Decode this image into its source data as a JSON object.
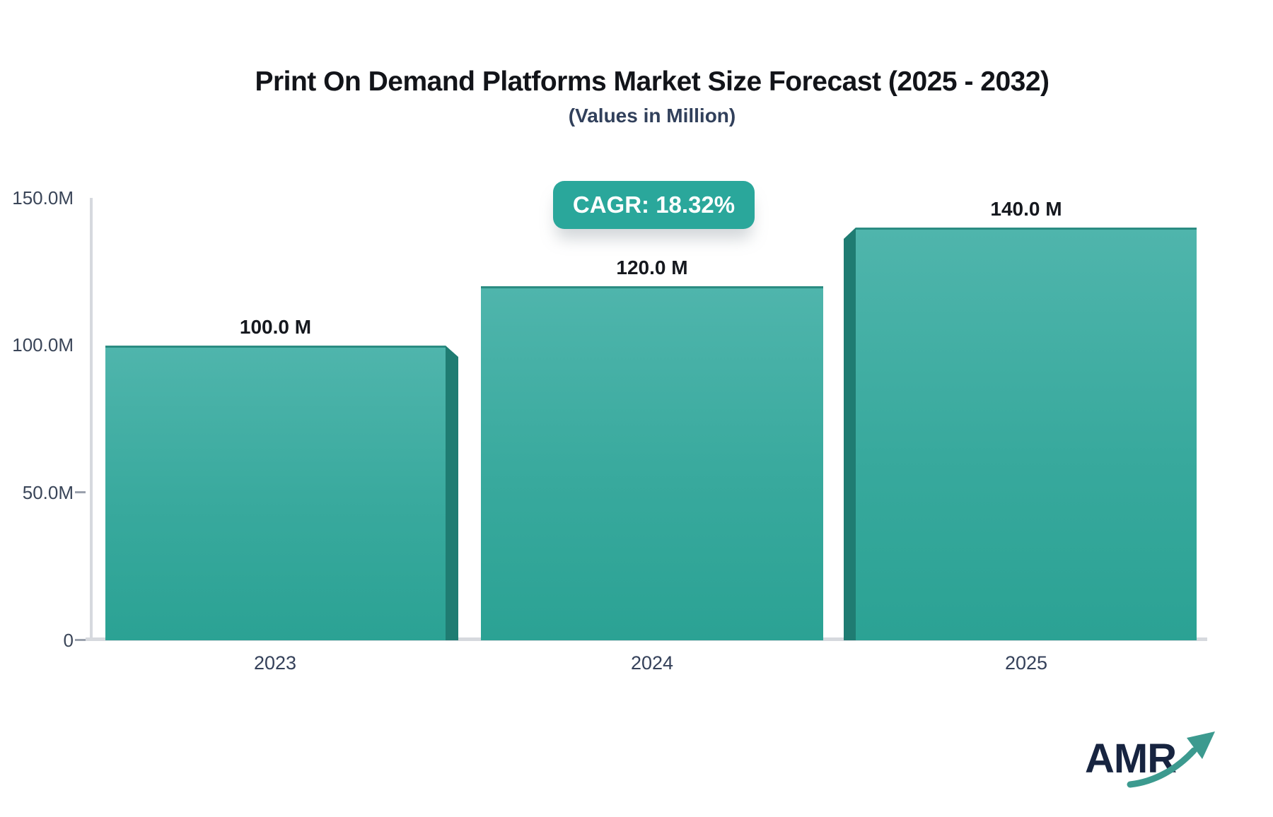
{
  "header": {
    "title": "Print On Demand Platforms Market Size Forecast (2025 - 2032)",
    "subtitle": "(Values in Million)"
  },
  "badge": {
    "label": "CAGR: 18.32%",
    "bg_color": "#2AA79B",
    "text_color": "#FFFFFF"
  },
  "chart_data": {
    "type": "bar",
    "title": "Print On Demand Platforms Market Size Forecast (2025 - 2032)",
    "subtitle": "(Values in Million)",
    "unit": "Million",
    "categories": [
      "2023",
      "2024",
      "2025"
    ],
    "values": [
      100.0,
      120.0,
      140.0
    ],
    "value_labels": [
      "100.0 M",
      "120.0 M",
      "140.0 M"
    ],
    "cagr_label": "CAGR: 18.32%",
    "ylim": [
      0,
      150
    ],
    "yticks": [
      150,
      100,
      50,
      0
    ],
    "ytick_labels": [
      "150.0M",
      "100.0M",
      "50.0M",
      "0"
    ],
    "grid": "off",
    "legend": "none",
    "bar_color_top": "#4FB5AC",
    "bar_color_bottom": "#2BA294",
    "bar_side_color": "#1F7C72",
    "axis_color": "#D6D9DE"
  },
  "logo": {
    "text": "AMR",
    "text_color": "#172440",
    "arrow_color": "#3C9A8F"
  }
}
